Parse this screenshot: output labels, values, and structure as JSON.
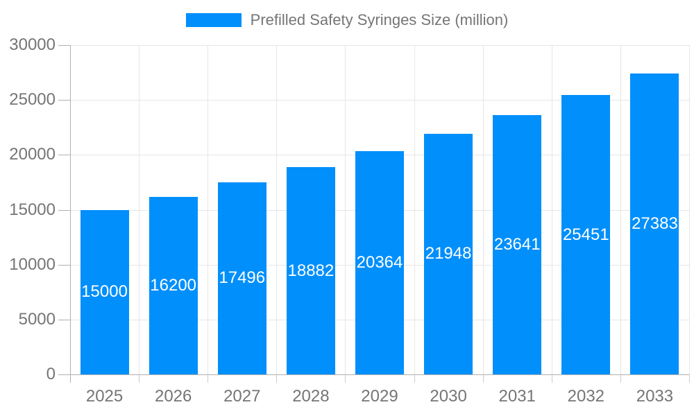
{
  "legend": {
    "label": "Prefilled Safety Syringes Size (million)"
  },
  "chart_data": {
    "type": "bar",
    "title": "Prefilled Safety Syringes Size (million)",
    "series_name": "Prefilled Safety Syringes Size (million)",
    "categories": [
      "2025",
      "2026",
      "2027",
      "2028",
      "2029",
      "2030",
      "2031",
      "2032",
      "2033"
    ],
    "values": [
      15000,
      16200,
      17496,
      18882,
      20364,
      21948,
      23641,
      25451,
      27383
    ],
    "value_labels": [
      "15000",
      "16200",
      "17496",
      "18882",
      "20364",
      "21948",
      "23641",
      "25451",
      "27383"
    ],
    "xlabel": "",
    "ylabel": "",
    "ylim": [
      0,
      30000
    ],
    "y_ticks": [
      0,
      5000,
      10000,
      15000,
      20000,
      25000,
      30000
    ],
    "y_tick_labels": [
      "0",
      "5000",
      "10000",
      "15000",
      "20000",
      "25000",
      "30000"
    ],
    "grid": true,
    "legend_position": "top",
    "bar_color": "#008FFB",
    "value_label_position": "center-inside"
  },
  "colors": {
    "bar": "#008FFB",
    "grid": "#e6e6e6",
    "axis": "#b0b0b0",
    "tick": "#cccccc",
    "label": "#757575",
    "value_label": "#ffffff",
    "background": "#ffffff"
  }
}
